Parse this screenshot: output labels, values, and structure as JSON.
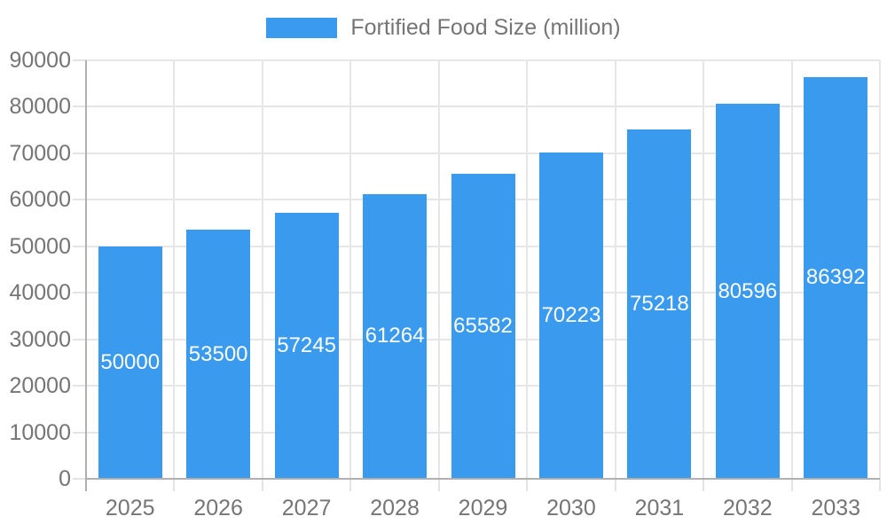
{
  "chart_data": {
    "type": "bar",
    "title": "",
    "legend": "Fortified Food Size (million)",
    "legend_position": "top-center",
    "categories": [
      "2025",
      "2026",
      "2027",
      "2028",
      "2029",
      "2030",
      "2031",
      "2032",
      "2033"
    ],
    "series": [
      {
        "name": "Fortified Food Size (million)",
        "values": [
          50000,
          53500,
          57245,
          61264,
          65582,
          70223,
          75218,
          80596,
          86392
        ],
        "data_labels": [
          "50000",
          "53500",
          "57245",
          "61264",
          "65582",
          "70223",
          "75218",
          "80596",
          "86392"
        ]
      }
    ],
    "xlabel": "",
    "ylabel": "",
    "ylim": [
      0,
      90000
    ],
    "ytick_step": 10000,
    "ytick_labels": [
      "0",
      "10000",
      "20000",
      "30000",
      "40000",
      "50000",
      "60000",
      "70000",
      "80000",
      "90000"
    ],
    "grid": true,
    "data_label_position": "inside-center",
    "colors": {
      "bar": "#3A9AEE",
      "axis_line": "#b0b0b0",
      "gridline": "#e6e6e6",
      "tick": "#e3e3e3",
      "axis_text": "#757575",
      "bar_label_text": "#ffffff",
      "background": "#ffffff"
    }
  }
}
